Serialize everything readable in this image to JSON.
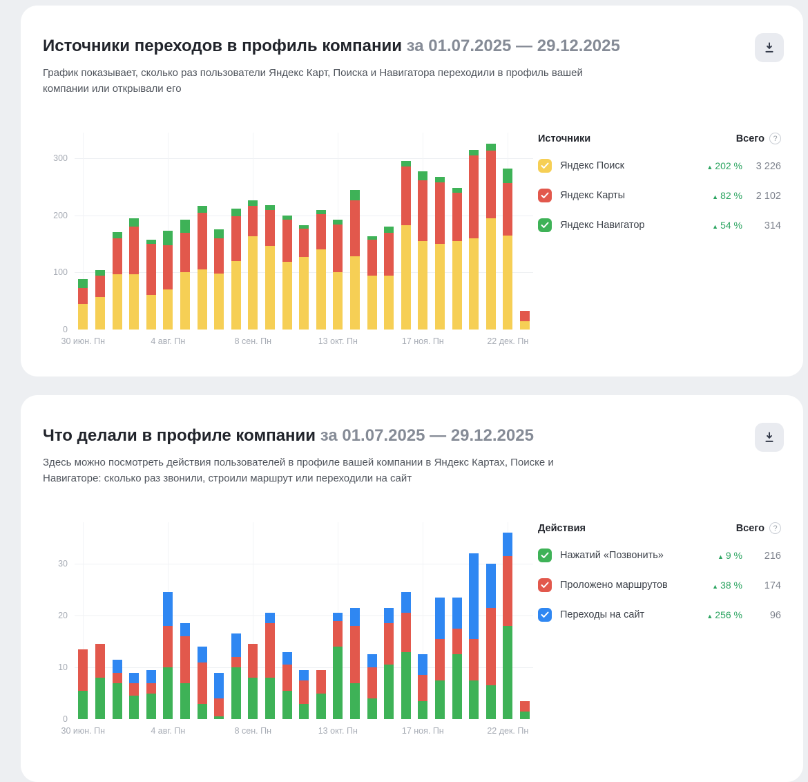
{
  "shared": {
    "up_symbol": "▲",
    "help_symbol": "?"
  },
  "cards": [
    {
      "title": "Источники переходов в профиль компании",
      "period": "за 01.07.2025 — 29.12.2025",
      "subtitle": "График показывает, сколько раз пользователи Яндекс Карт, Поиска и Навигатора переходили в профиль вашей компании или открывали его",
      "legend": {
        "header": "Источники",
        "total_label": "Всего",
        "items": [
          {
            "label": "Яндекс Поиск",
            "change": "202 %",
            "total": "3 226"
          },
          {
            "label": "Яндекс Карты",
            "change": "82 %",
            "total": "2 102"
          },
          {
            "label": "Яндекс Навигатор",
            "change": "54 %",
            "total": "314"
          }
        ]
      },
      "chart_data": {
        "type": "bar",
        "stacked": true,
        "title": "Источники переходов в профиль компании",
        "x_tick_labels": [
          "30 июн. Пн",
          "4 авг. Пн",
          "8 сен. Пн",
          "13 окт. Пн",
          "17 ноя. Пн",
          "22 дек. Пн"
        ],
        "x_tick_positions": [
          0,
          5,
          10,
          15,
          20,
          25
        ],
        "y_ticks": [
          0,
          100,
          200,
          300
        ],
        "ylim": [
          0,
          345
        ],
        "grid": true,
        "legend_position": "right",
        "series": [
          {
            "name": "Яндекс Поиск",
            "color": "#f6cf55",
            "values": [
              45,
              57,
              97,
              97,
              60,
              70,
              100,
              105,
              98,
              120,
              163,
              146,
              119,
              127,
              140,
              100,
              128,
              94,
              95,
              183,
              155,
              150,
              155,
              160,
              195,
              165,
              15
            ]
          },
          {
            "name": "Яндекс Карты",
            "color": "#e2584c",
            "values": [
              28,
              37,
              63,
              83,
              90,
              78,
              70,
              100,
              62,
              78,
              54,
              63,
              74,
              50,
              62,
              84,
              98,
              64,
              75,
              103,
              107,
              108,
              85,
              145,
              118,
              92,
              18
            ]
          },
          {
            "name": "Яндекс Навигатор",
            "color": "#3eb257",
            "values": [
              15,
              10,
              11,
              15,
              7,
              25,
              22,
              12,
              15,
              14,
              10,
              9,
              7,
              6,
              8,
              8,
              19,
              5,
              10,
              9,
              15,
              10,
              8,
              10,
              13,
              25,
              0
            ]
          }
        ]
      }
    },
    {
      "title": "Что делали в профиле компании",
      "period": "за 01.07.2025 — 29.12.2025",
      "subtitle": "Здесь можно посмотреть действия пользователей в профиле вашей компании в Яндекс Картах, Поиске и Навигаторе: сколько раз звонили, строили маршрут или переходили на сайт",
      "legend": {
        "header": "Действия",
        "total_label": "Всего",
        "items": [
          {
            "label": "Нажатий «Позвонить»",
            "change": "9 %",
            "total": "216"
          },
          {
            "label": "Проложено маршрутов",
            "change": "38 %",
            "total": "174"
          },
          {
            "label": "Переходы на сайт",
            "change": "256 %",
            "total": "96"
          }
        ]
      },
      "chart_data": {
        "type": "bar",
        "stacked": true,
        "title": "Что делали в профиле компании",
        "x_tick_labels": [
          "30 июн. Пн",
          "4 авг. Пн",
          "8 сен. Пн",
          "13 окт. Пн",
          "17 ноя. Пн",
          "22 дек. Пн"
        ],
        "x_tick_positions": [
          0,
          5,
          10,
          15,
          20,
          25
        ],
        "y_ticks": [
          0,
          10,
          20,
          30
        ],
        "ylim": [
          0,
          38
        ],
        "grid": true,
        "legend_position": "right",
        "series": [
          {
            "name": "Нажатий «Позвонить»",
            "color": "#3eb257",
            "values": [
              5.5,
              8,
              7,
              4.5,
              5,
              10,
              7,
              3,
              0.5,
              10,
              8,
              8,
              5.5,
              3,
              5,
              14,
              7,
              4,
              10.5,
              13,
              3.5,
              7.5,
              12.5,
              7.5,
              6.5,
              18,
              1.5
            ]
          },
          {
            "name": "Проложено маршрутов",
            "color": "#e2584c",
            "values": [
              8,
              6.5,
              2,
              2.5,
              2,
              8,
              9,
              8,
              3.5,
              2,
              6.5,
              10.5,
              5,
              4.5,
              4.5,
              5,
              11,
              6,
              8,
              7.5,
              5,
              8,
              5,
              8,
              15,
              13.5,
              2
            ]
          },
          {
            "name": "Переходы на сайт",
            "color": "#2f87f2",
            "values": [
              0,
              0,
              2.5,
              2,
              2.5,
              6.5,
              2.5,
              3,
              5,
              4.5,
              0,
              2,
              2.5,
              2,
              0,
              1.5,
              3.5,
              2.5,
              3,
              4,
              4,
              8,
              6,
              16.5,
              8.5,
              4.5,
              0
            ]
          }
        ]
      }
    }
  ]
}
